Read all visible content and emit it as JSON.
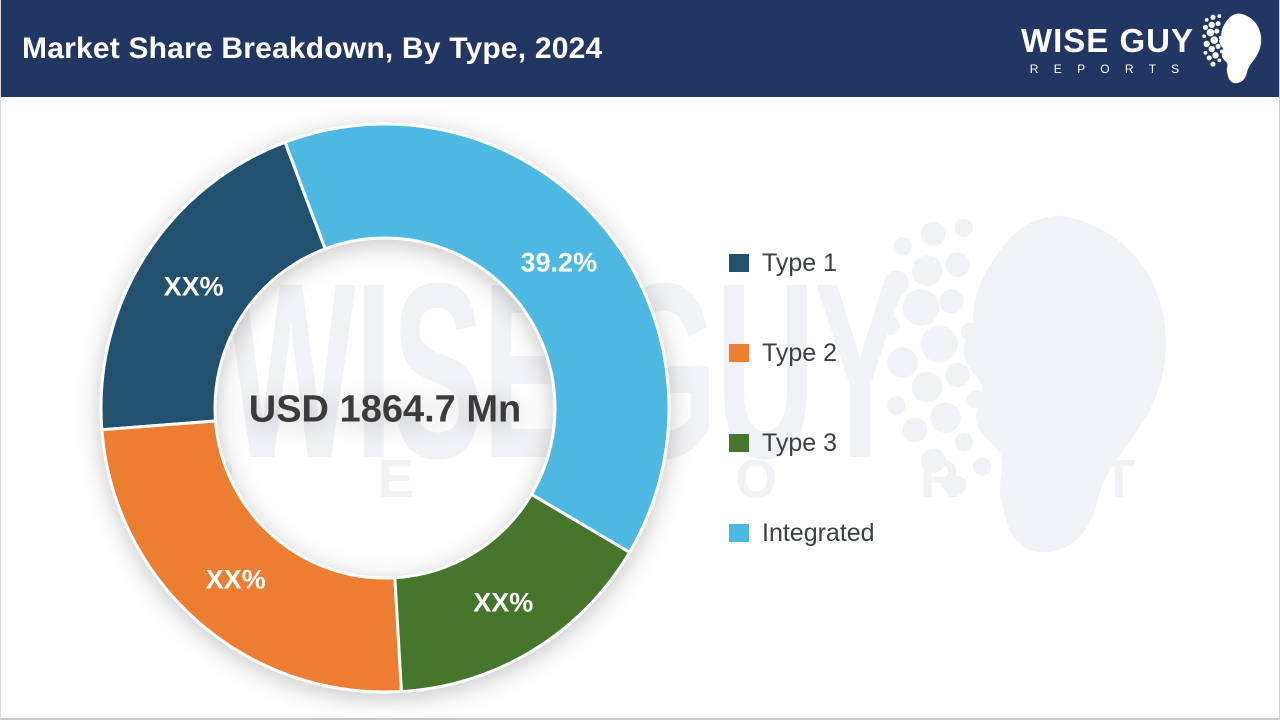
{
  "header": {
    "title": "Market Share Breakdown, By Type, 2024",
    "logo": {
      "name": "WISE GUY",
      "tagline": "R E P O R T S"
    }
  },
  "watermark": {
    "name": "WISE GUY",
    "tagline": "R E P O R T S"
  },
  "chart_data": {
    "type": "pie",
    "subtype": "donut",
    "title": "Market Share Breakdown, By Type, 2024",
    "center_label": "USD 1864.7 Mn",
    "start_angle_deg": 110.6,
    "legend_position": "right",
    "segments": [
      {
        "name": "Type 1",
        "label": "XX%",
        "value_pct": 20.5,
        "color": "#21516F"
      },
      {
        "name": "Type 2",
        "label": "XX%",
        "value_pct": 24.7,
        "color": "#EC7D31"
      },
      {
        "name": "Type 3",
        "label": "XX%",
        "value_pct": 15.6,
        "color": "#46762B"
      },
      {
        "name": "Integrated",
        "label": "39.2%",
        "value_pct": 39.2,
        "color": "#4DB9E2"
      }
    ]
  },
  "colors": {
    "header_bg": "#213663",
    "center_text": "#3B3B3B",
    "legend_text": "#3A4046",
    "watermark": "#F1F2F5"
  }
}
